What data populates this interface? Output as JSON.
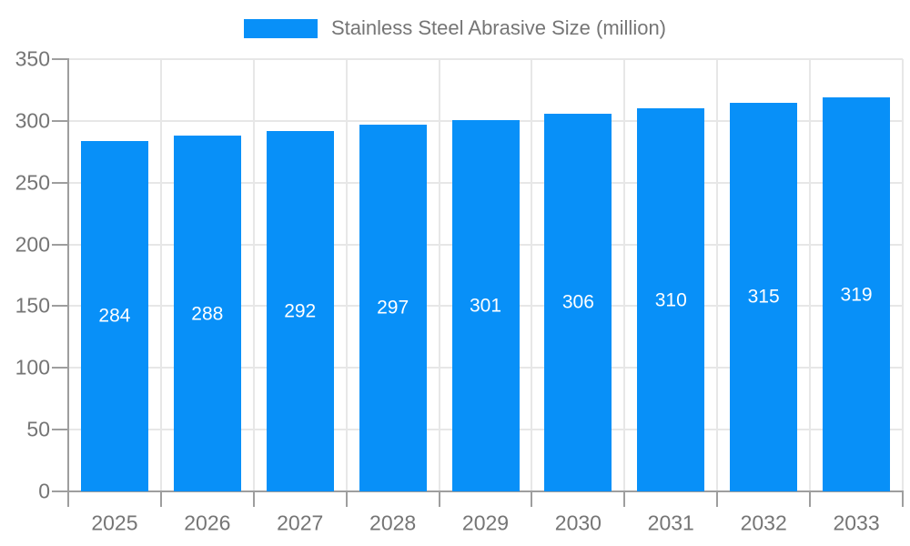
{
  "legend": {
    "label": "Stainless Steel Abrasive Size (million)"
  },
  "chart_data": {
    "type": "bar",
    "title": "Stainless Steel Abrasive Size (million)",
    "series_name": "Stainless Steel Abrasive Size (million)",
    "categories": [
      "2025",
      "2026",
      "2027",
      "2028",
      "2029",
      "2030",
      "2031",
      "2032",
      "2033"
    ],
    "values": [
      284,
      288,
      292,
      297,
      301,
      306,
      310,
      315,
      319
    ],
    "xlabel": "",
    "ylabel": "",
    "ylim": [
      0,
      350
    ],
    "yticks": [
      0,
      50,
      100,
      150,
      200,
      250,
      300,
      350
    ],
    "grid": true,
    "legend_position": "top-center",
    "bar_label_position": "inside-center",
    "colors": {
      "bar": "#0890f8",
      "grid": "#e7e7e7",
      "axis": "#9e9e9e",
      "tick_text": "#757575",
      "bar_label": "#ffffff",
      "background": "#ffffff"
    }
  }
}
